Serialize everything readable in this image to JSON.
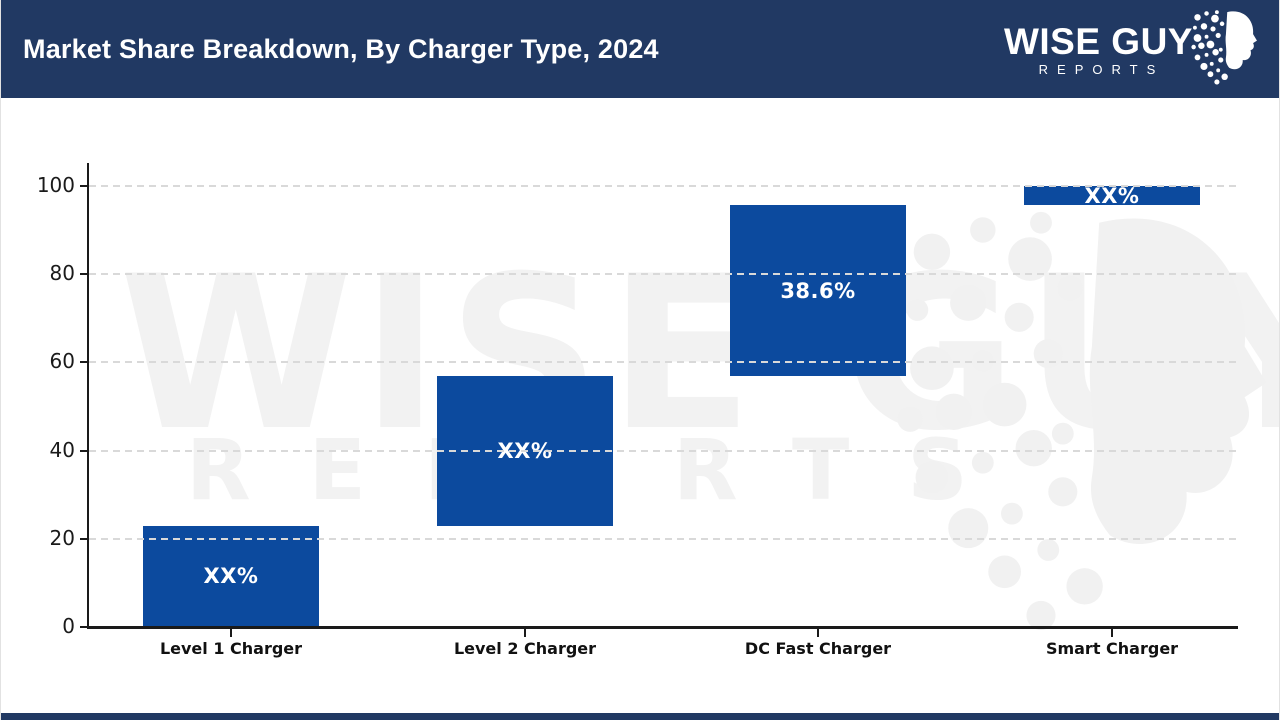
{
  "header": {
    "title": "Market Share Breakdown, By Charger Type, 2024",
    "logo_line1": "WISE GUY",
    "logo_line2": "REPORTS"
  },
  "watermark": {
    "line1": "WISE GUY",
    "line2": "REPORTS"
  },
  "colors": {
    "header_bg": "#213963",
    "bar": "#0C4A9E",
    "grid": "#D9D9D9",
    "axis": "#1A1A1A",
    "bar_label_text": "#FFFFFF",
    "watermark": "#F2F2F2"
  },
  "chart_data": {
    "type": "bar",
    "variant": "waterfall",
    "title": "Market Share Breakdown, By Charger Type, 2024",
    "categories": [
      "Level 1 Charger",
      "Level 2 Charger",
      "DC Fast Charger",
      "Smart Charger"
    ],
    "series": [
      {
        "category": "Level 1 Charger",
        "start": 0,
        "end": 23,
        "label": "XX%"
      },
      {
        "category": "Level 2 Charger",
        "start": 23,
        "end": 57,
        "label": "XX%"
      },
      {
        "category": "DC Fast Charger",
        "start": 57,
        "end": 95.6,
        "label": "38.6%"
      },
      {
        "category": "Smart Charger",
        "start": 95.6,
        "end": 100,
        "label": "XX%"
      }
    ],
    "xlabel": "",
    "ylabel": "",
    "ylim": [
      0,
      105
    ],
    "yticks": [
      0,
      20,
      40,
      60,
      80,
      100
    ],
    "grid": "horizontal-dashed",
    "legend": "none"
  }
}
